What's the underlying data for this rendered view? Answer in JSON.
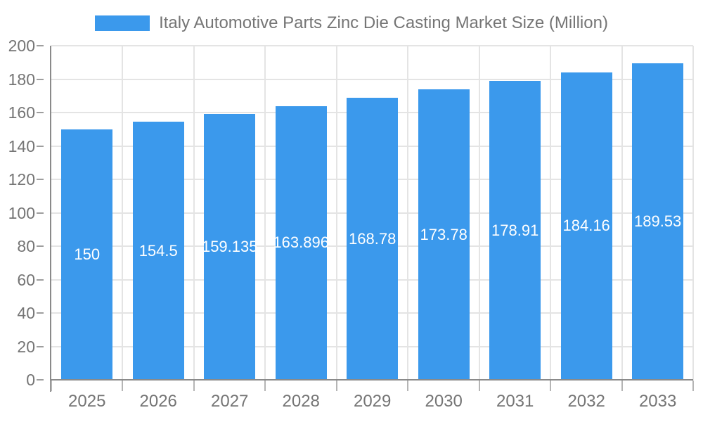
{
  "legend": {
    "label": "Italy Automotive Parts Zinc Die Casting Market Size (Million)"
  },
  "chart_data": {
    "type": "bar",
    "title": "Italy Automotive Parts Zinc Die Casting Market Size (Million)",
    "categories": [
      "2025",
      "2026",
      "2027",
      "2028",
      "2029",
      "2030",
      "2031",
      "2032",
      "2033"
    ],
    "values": [
      150,
      154.5,
      159.135,
      163.896,
      168.78,
      173.78,
      178.91,
      184.16,
      189.53
    ],
    "bar_labels": [
      "150",
      "154.5",
      "159.135",
      "163.896",
      "168.78",
      "173.78",
      "178.91",
      "184.16",
      "189.53"
    ],
    "xlabel": "",
    "ylabel": "",
    "ylim": [
      0,
      200
    ],
    "ytick_step": 20,
    "ytick_labels": [
      "0",
      "20",
      "40",
      "60",
      "80",
      "100",
      "120",
      "140",
      "160",
      "180",
      "200"
    ],
    "grid": true,
    "legend_position": "top",
    "bar_color": "#3b99ec",
    "bar_label_color": "#ffffff",
    "axis_text_color": "#757575",
    "gridline_color": "#e4e4e4",
    "axis_line_color": "#8a8a8a"
  }
}
